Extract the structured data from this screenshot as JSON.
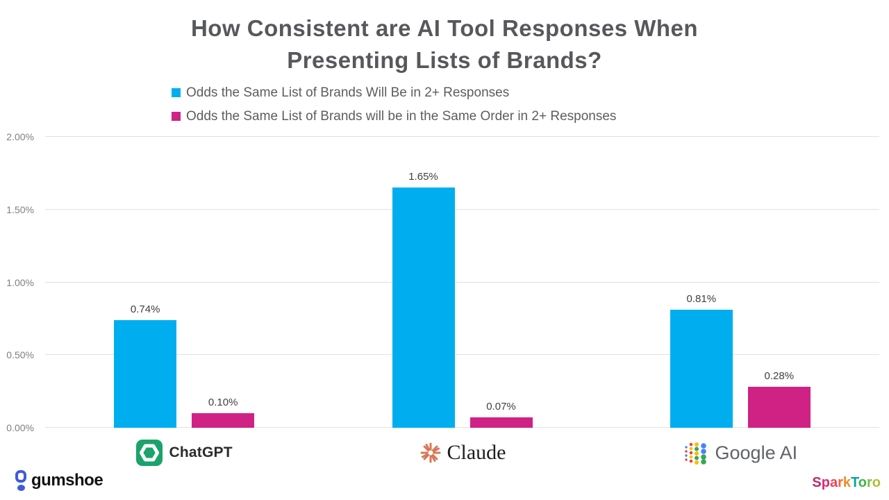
{
  "title": {
    "line1": "How Consistent are AI Tool Responses When",
    "line2": "Presenting Lists of Brands?"
  },
  "legend": [
    {
      "label": "Odds the Same List of Brands Will Be in 2+ Responses",
      "color": "#00AEEF"
    },
    {
      "label": "Odds the Same List of Brands will be in the Same Order in 2+ Responses",
      "color": "#D02185"
    }
  ],
  "chart_data": {
    "type": "bar",
    "categories": [
      "ChatGPT",
      "Claude",
      "Google AI"
    ],
    "series": [
      {
        "name": "Odds the Same List of Brands Will Be in 2+ Responses",
        "color": "#00AEEF",
        "values": [
          0.74,
          1.65,
          0.81
        ]
      },
      {
        "name": "Odds the Same List of Brands will be in the Same Order in 2+ Responses",
        "color": "#D02185",
        "values": [
          0.1,
          0.07,
          0.28
        ]
      }
    ],
    "data_labels": [
      [
        "0.74%",
        "1.65%",
        "0.81%"
      ],
      [
        "0.10%",
        "0.07%",
        "0.28%"
      ]
    ],
    "value_suffix": "%",
    "ylim": [
      0,
      2.0
    ],
    "yticks": [
      "0.00%",
      "0.50%",
      "1.00%",
      "1.50%",
      "2.00%"
    ],
    "grid": true,
    "legend_position": "top-left",
    "title": "How Consistent are AI Tool Responses When Presenting Lists of Brands?"
  },
  "brand_icons": {
    "chatgpt": {
      "bg_color": "#1AA36A",
      "glyph_color": "#FFFFFF"
    },
    "claude": {
      "color": "#D97757"
    },
    "google": {
      "blue": "#4285F4",
      "red": "#EA4335",
      "yellow": "#FBBC05",
      "green": "#34A853"
    }
  },
  "footer": {
    "gumshoe": {
      "text": "gumshoe",
      "icon_color": "#3E5BE0"
    },
    "sparktoro": {
      "text": "SparkToro",
      "letters": [
        {
          "ch": "S",
          "color": "#BB2A69"
        },
        {
          "ch": "p",
          "color": "#D92A72"
        },
        {
          "ch": "a",
          "color": "#EC4258"
        },
        {
          "ch": "r",
          "color": "#F2653A"
        },
        {
          "ch": "k",
          "color": "#F68B20"
        },
        {
          "ch": "T",
          "color": "#00A79B"
        },
        {
          "ch": "o",
          "color": "#3CB54A"
        },
        {
          "ch": "r",
          "color": "#7CBB42"
        },
        {
          "ch": "o",
          "color": "#AFBE36"
        }
      ]
    }
  }
}
